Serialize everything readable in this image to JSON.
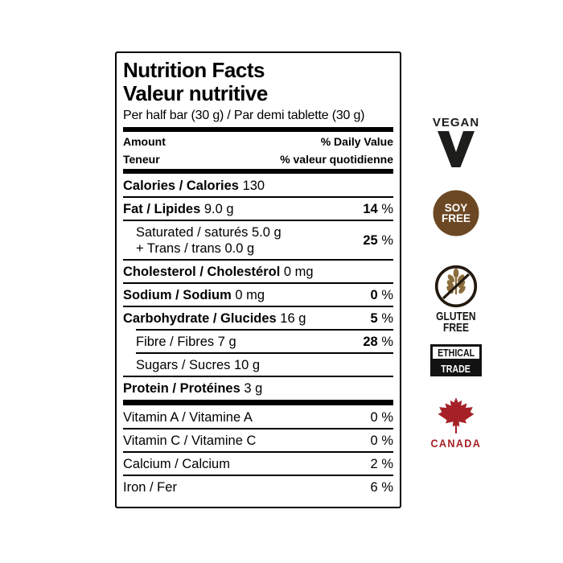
{
  "label": {
    "title_en": "Nutrition Facts",
    "title_fr": "Valeur nutritive",
    "serving": "Per half bar (30 g) / Par demi tablette (30 g)",
    "header": {
      "amount_en": "Amount",
      "daily_value_en": "% Daily Value",
      "amount_fr": "Teneur",
      "daily_value_fr": "% valeur quotidienne"
    },
    "percent_sign": "%",
    "rows": [
      {
        "label": "Calories / Calories",
        "value": "130",
        "bold": true,
        "sep": "thin"
      },
      {
        "label": "Fat / Lipides",
        "value": "9.0 g",
        "bold": true,
        "pct": "14",
        "pct_bold": true,
        "sep": "thin"
      },
      {
        "label": "Saturated / saturés",
        "value": "5.0 g",
        "line2": "+ Trans / trans 0.0 g",
        "indent": true,
        "pct": "25",
        "pct_bold": true,
        "sep": "thin"
      },
      {
        "label": "Cholesterol / Cholestérol",
        "value": "0 mg",
        "bold": true,
        "sep": "thin"
      },
      {
        "label": "Sodium / Sodium",
        "value": "0 mg",
        "bold": true,
        "pct": "0",
        "pct_bold": true,
        "sep": "thin"
      },
      {
        "label": "Carbohydrate / Glucides",
        "value": "16 g",
        "bold": true,
        "pct": "5",
        "pct_bold": true,
        "sep": "thin-indent"
      },
      {
        "label": "Fibre / Fibres",
        "value": "7 g",
        "indent": true,
        "pct": "28",
        "pct_bold": true,
        "sep": "thin-indent"
      },
      {
        "label": "Sugars / Sucres",
        "value": "10 g",
        "indent": true,
        "sep": "thin"
      },
      {
        "label": "Protein / Protéines",
        "value": "3 g",
        "bold": true,
        "sep": "thick"
      },
      {
        "label": "Vitamin A / Vitamine A",
        "value": "",
        "pct": "0",
        "pct_bold": false,
        "sep": "thin"
      },
      {
        "label": "Vitamin C / Vitamine C",
        "value": "",
        "pct": "0",
        "pct_bold": false,
        "sep": "thin"
      },
      {
        "label": "Calcium / Calcium",
        "value": "",
        "pct": "2",
        "pct_bold": false,
        "sep": "thin"
      },
      {
        "label": "Iron / Fer",
        "value": "",
        "pct": "6",
        "pct_bold": false,
        "sep": "none"
      }
    ]
  },
  "badges": {
    "vegan": {
      "label": "VEGAN",
      "color": "#1d1d1b"
    },
    "soy_free": {
      "line1": "SOY",
      "line2": "FREE",
      "circle_color": "#6b4823",
      "text_color": "#ffffff"
    },
    "gluten_free": {
      "line1": "GLUTEN",
      "line2": "FREE",
      "wheat_color": "#8a6d3b",
      "ring_color": "#241a10",
      "text_color": "#151310"
    },
    "ethical_trade": {
      "line1": "ETHICAL",
      "line2": "TRADE",
      "color": "#121212"
    },
    "canada": {
      "label": "CANADA",
      "color": "#a62127"
    }
  }
}
